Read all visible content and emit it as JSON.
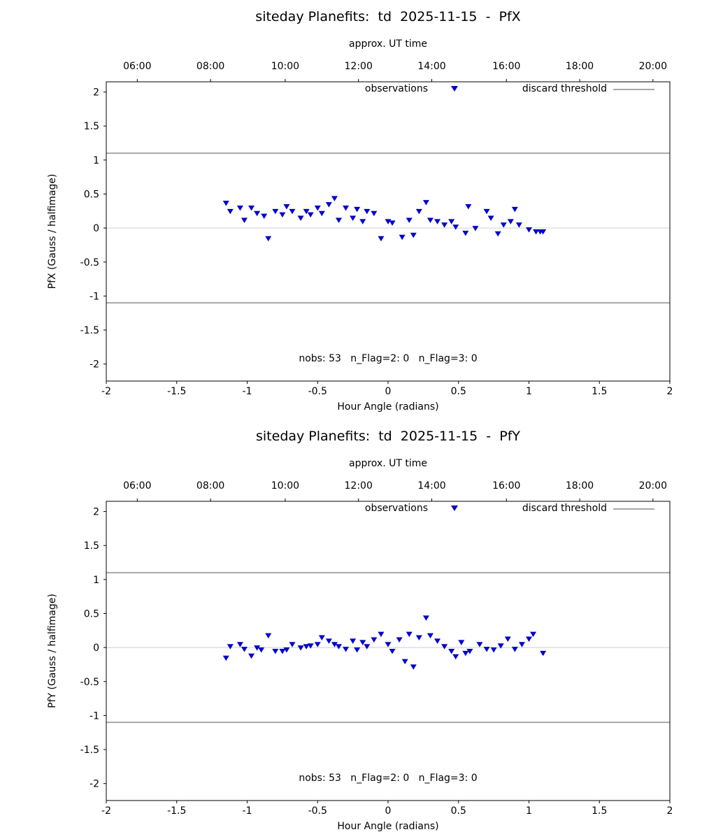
{
  "page_title": "siteday Planefits td 2025-11-15",
  "chart_data": [
    {
      "type": "scatter",
      "title": "siteday Planefits:  td  2025-11-15  -  PfX",
      "top_axis_label": "approx. UT time",
      "xlabel": "Hour Angle (radians)",
      "ylabel": "PfX (Gauss / halfimage)",
      "xlim": [
        -2,
        2
      ],
      "ylim": [
        -2.25,
        2.15
      ],
      "xticks": [
        -2,
        -1.5,
        -1,
        -0.5,
        0,
        0.5,
        1,
        1.5,
        2
      ],
      "yticks": [
        2,
        1.5,
        1,
        0.5,
        0,
        -0.5,
        -1,
        -1.5,
        -2
      ],
      "top_ticks": {
        "labels": [
          "06:00",
          "08:00",
          "10:00",
          "12:00",
          "14:00",
          "16:00",
          "18:00",
          "20:00"
        ],
        "positions": [
          -1.78,
          -1.26,
          -0.73,
          -0.21,
          0.31,
          0.84,
          1.36,
          1.88
        ]
      },
      "legend": [
        {
          "label": "observations",
          "sample": "triangle-down-marker"
        },
        {
          "label": "discard threshold",
          "sample": "gray-line"
        }
      ],
      "legend_position": "top-inside",
      "grid": false,
      "discard_threshold": 1.1,
      "zero_line": 0,
      "marker": "triangle-down",
      "marker_color": "#0000cc",
      "threshold_color": "#a8a8a8",
      "zero_line_color": "#cfcfcf",
      "annotation": "nobs: 53   n_Flag=2: 0   n_Flag=3: 0",
      "nobs": 53,
      "n_flag_2": 0,
      "n_flag_3": 0,
      "points": [
        [
          -1.15,
          0.37
        ],
        [
          -1.12,
          0.25
        ],
        [
          -1.05,
          0.3
        ],
        [
          -1.02,
          0.12
        ],
        [
          -0.97,
          0.3
        ],
        [
          -0.93,
          0.22
        ],
        [
          -0.88,
          0.18
        ],
        [
          -0.85,
          -0.15
        ],
        [
          -0.8,
          0.25
        ],
        [
          -0.75,
          0.2
        ],
        [
          -0.72,
          0.32
        ],
        [
          -0.68,
          0.25
        ],
        [
          -0.62,
          0.15
        ],
        [
          -0.58,
          0.25
        ],
        [
          -0.55,
          0.2
        ],
        [
          -0.5,
          0.3
        ],
        [
          -0.47,
          0.22
        ],
        [
          -0.42,
          0.35
        ],
        [
          -0.38,
          0.44
        ],
        [
          -0.35,
          0.12
        ],
        [
          -0.3,
          0.3
        ],
        [
          -0.25,
          0.15
        ],
        [
          -0.22,
          0.28
        ],
        [
          -0.18,
          0.1
        ],
        [
          -0.15,
          0.25
        ],
        [
          -0.1,
          0.22
        ],
        [
          -0.05,
          -0.15
        ],
        [
          0.0,
          0.1
        ],
        [
          0.03,
          0.08
        ],
        [
          0.1,
          -0.13
        ],
        [
          0.15,
          0.12
        ],
        [
          0.18,
          -0.1
        ],
        [
          0.22,
          0.25
        ],
        [
          0.27,
          0.38
        ],
        [
          0.3,
          0.12
        ],
        [
          0.35,
          0.1
        ],
        [
          0.4,
          0.05
        ],
        [
          0.45,
          0.1
        ],
        [
          0.48,
          0.02
        ],
        [
          0.55,
          -0.07
        ],
        [
          0.57,
          0.32
        ],
        [
          0.62,
          0.0
        ],
        [
          0.7,
          0.25
        ],
        [
          0.73,
          0.15
        ],
        [
          0.78,
          -0.08
        ],
        [
          0.82,
          0.05
        ],
        [
          0.87,
          0.1
        ],
        [
          0.9,
          0.28
        ],
        [
          0.93,
          0.05
        ],
        [
          1.0,
          -0.02
        ],
        [
          1.05,
          -0.05
        ],
        [
          1.08,
          -0.05
        ],
        [
          1.1,
          -0.05
        ]
      ]
    },
    {
      "type": "scatter",
      "title": "siteday Planefits:  td  2025-11-15  -  PfY",
      "top_axis_label": "approx. UT time",
      "xlabel": "Hour Angle (radians)",
      "ylabel": "PfY (Gauss / halfimage)",
      "xlim": [
        -2,
        2
      ],
      "ylim": [
        -2.25,
        2.15
      ],
      "xticks": [
        -2,
        -1.5,
        -1,
        -0.5,
        0,
        0.5,
        1,
        1.5,
        2
      ],
      "yticks": [
        2,
        1.5,
        1,
        0.5,
        0,
        -0.5,
        -1,
        -1.5,
        -2
      ],
      "top_ticks": {
        "labels": [
          "06:00",
          "08:00",
          "10:00",
          "12:00",
          "14:00",
          "16:00",
          "18:00",
          "20:00"
        ],
        "positions": [
          -1.78,
          -1.26,
          -0.73,
          -0.21,
          0.31,
          0.84,
          1.36,
          1.88
        ]
      },
      "legend": [
        {
          "label": "observations",
          "sample": "triangle-down-marker"
        },
        {
          "label": "discard threshold",
          "sample": "gray-line"
        }
      ],
      "legend_position": "top-inside",
      "grid": false,
      "discard_threshold": 1.1,
      "zero_line": 0,
      "marker": "triangle-down",
      "marker_color": "#0000cc",
      "threshold_color": "#a8a8a8",
      "zero_line_color": "#cfcfcf",
      "annotation": "nobs: 53   n_Flag=2: 0   n_Flag=3: 0",
      "nobs": 53,
      "n_flag_2": 0,
      "n_flag_3": 0,
      "points": [
        [
          -1.15,
          -0.15
        ],
        [
          -1.12,
          0.02
        ],
        [
          -1.05,
          0.05
        ],
        [
          -1.02,
          -0.02
        ],
        [
          -0.97,
          -0.12
        ],
        [
          -0.93,
          0.0
        ],
        [
          -0.9,
          -0.03
        ],
        [
          -0.85,
          0.18
        ],
        [
          -0.8,
          -0.05
        ],
        [
          -0.75,
          -0.05
        ],
        [
          -0.72,
          -0.03
        ],
        [
          -0.68,
          0.05
        ],
        [
          -0.62,
          0.0
        ],
        [
          -0.58,
          0.02
        ],
        [
          -0.55,
          0.03
        ],
        [
          -0.5,
          0.05
        ],
        [
          -0.47,
          0.15
        ],
        [
          -0.42,
          0.1
        ],
        [
          -0.38,
          0.05
        ],
        [
          -0.35,
          0.02
        ],
        [
          -0.3,
          -0.02
        ],
        [
          -0.25,
          0.1
        ],
        [
          -0.22,
          -0.03
        ],
        [
          -0.18,
          0.08
        ],
        [
          -0.15,
          0.02
        ],
        [
          -0.1,
          0.12
        ],
        [
          -0.05,
          0.2
        ],
        [
          0.0,
          0.05
        ],
        [
          0.03,
          -0.05
        ],
        [
          0.08,
          0.12
        ],
        [
          0.12,
          -0.2
        ],
        [
          0.15,
          0.2
        ],
        [
          0.18,
          -0.28
        ],
        [
          0.22,
          0.15
        ],
        [
          0.27,
          0.44
        ],
        [
          0.3,
          0.18
        ],
        [
          0.35,
          0.1
        ],
        [
          0.4,
          0.02
        ],
        [
          0.45,
          -0.05
        ],
        [
          0.48,
          -0.13
        ],
        [
          0.52,
          0.08
        ],
        [
          0.55,
          -0.08
        ],
        [
          0.58,
          -0.05
        ],
        [
          0.65,
          0.05
        ],
        [
          0.7,
          -0.02
        ],
        [
          0.75,
          -0.03
        ],
        [
          0.8,
          0.03
        ],
        [
          0.85,
          0.13
        ],
        [
          0.9,
          -0.02
        ],
        [
          0.95,
          0.05
        ],
        [
          1.0,
          0.13
        ],
        [
          1.03,
          0.2
        ],
        [
          1.1,
          -0.08
        ]
      ]
    }
  ]
}
